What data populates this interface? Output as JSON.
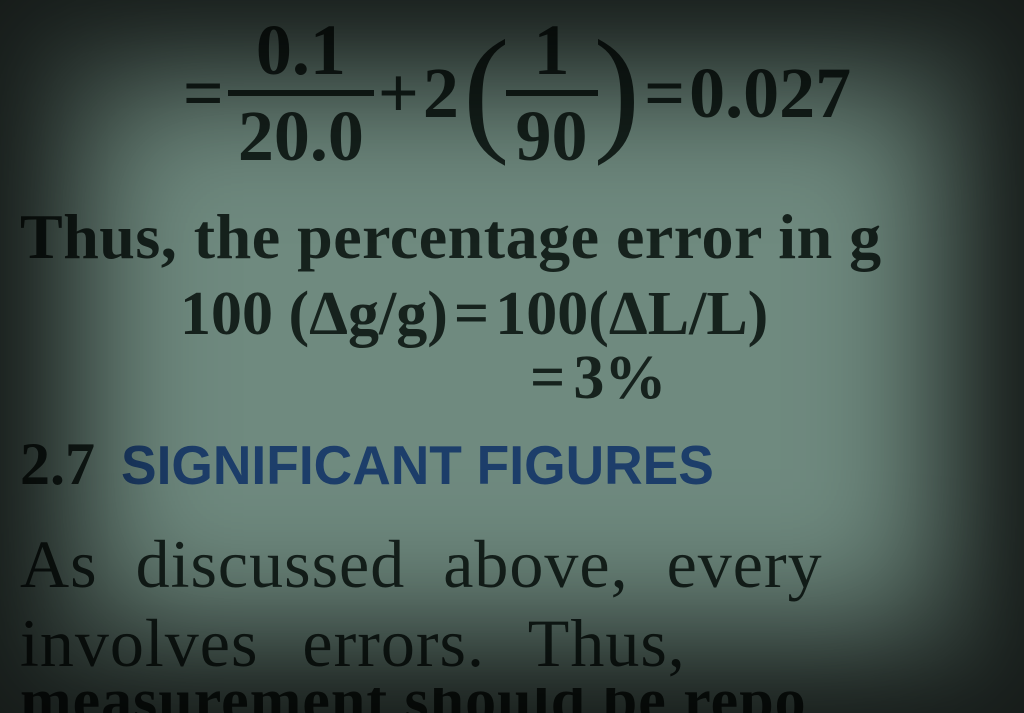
{
  "colors": {
    "background": "#6f8a7f",
    "text_dark": "#16221d",
    "heading_blue": "#1d3e6a",
    "frac_bar": "#16221d"
  },
  "equation1": {
    "eq": "=",
    "frac1_num": "0.1",
    "frac1_den": "20.0",
    "plus": "+",
    "coef": "2",
    "frac2_num": "1",
    "frac2_den": "90",
    "eq2": "=",
    "result": "0.027"
  },
  "para1": "Thus, the percentage error in g",
  "equation2": {
    "lhs": "100 (Δg/g)",
    "eq": "=",
    "rhs": "100(ΔL/L)"
  },
  "equation3": {
    "eq": "=",
    "val": "3%"
  },
  "heading": {
    "num": "2.7",
    "title": "SIGNIFICANT FIGURES"
  },
  "para2_line1": "As discussed above, every",
  "para2_line2": "involves errors. Thus,",
  "cutoff": "measurement should be repo"
}
